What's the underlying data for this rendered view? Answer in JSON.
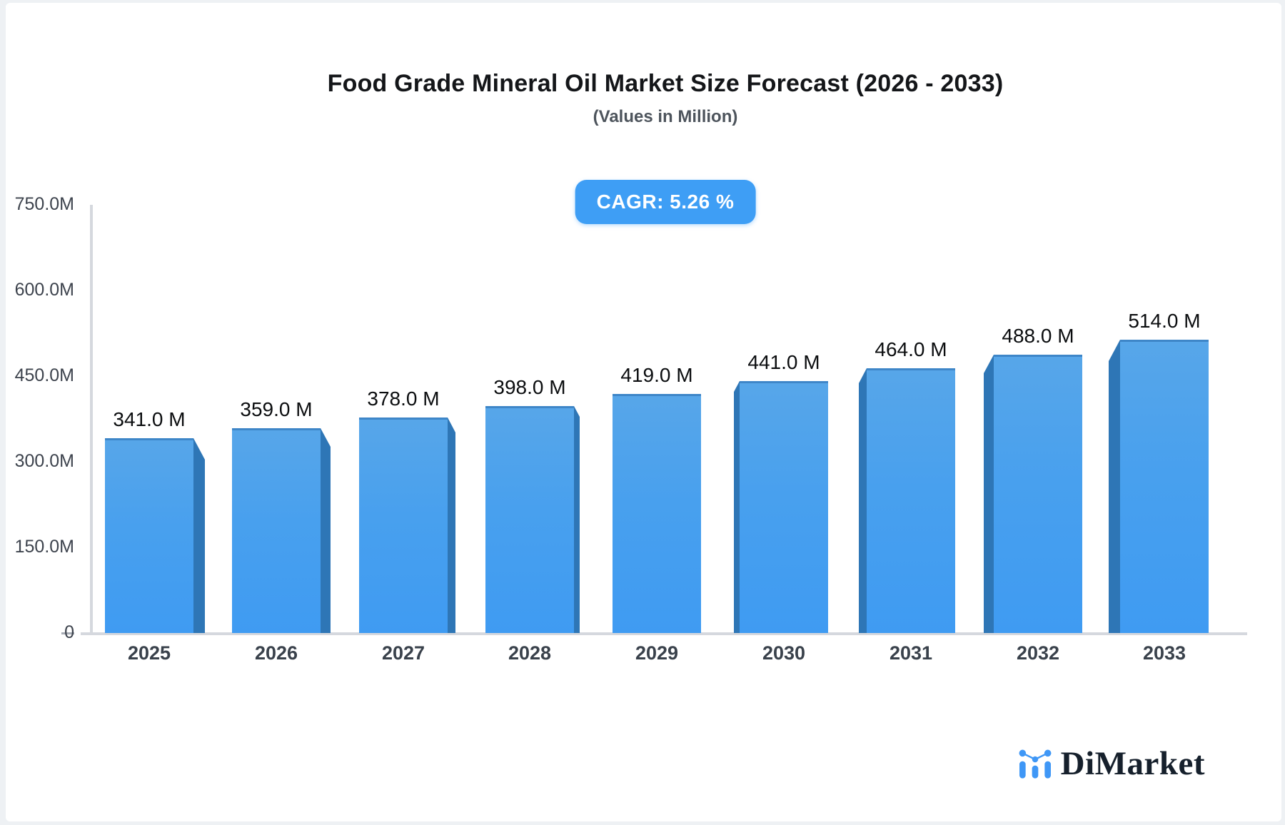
{
  "page": {
    "frame_color": "#eef1f4",
    "card_color": "#ffffff"
  },
  "header": {
    "title": "Food Grade Mineral Oil Market Size Forecast (2026 - 2033)",
    "subtitle": "(Values in Million)",
    "cagr_badge": "CAGR: 5.26 %"
  },
  "chart_data": {
    "type": "bar",
    "title": "Food Grade Mineral Oil Market Size Forecast (2026 - 2033)",
    "subtitle": "(Values in Million)",
    "cagr_percent": 5.26,
    "categories": [
      "2025",
      "2026",
      "2027",
      "2028",
      "2029",
      "2030",
      "2031",
      "2032",
      "2033"
    ],
    "values": [
      341,
      359,
      378,
      398,
      419,
      441,
      464,
      488,
      514
    ],
    "value_labels": [
      "341.0 M",
      "359.0 M",
      "378.0 M",
      "398.0 M",
      "419.0 M",
      "441.0 M",
      "464.0 M",
      "488.0 M",
      "514.0 M"
    ],
    "unit": "Million",
    "ylim": [
      0,
      750
    ],
    "yticks": [
      {
        "label": "750.0M",
        "value": 750
      },
      {
        "label": "600.0M",
        "value": 600
      },
      {
        "label": "450.0M",
        "value": 450
      },
      {
        "label": "300.0M",
        "value": 300
      },
      {
        "label": "150.0M",
        "value": 150
      },
      {
        "label": "0",
        "value": 0
      }
    ],
    "grid": false,
    "legend_position": "none",
    "bar_color": "#459ff0",
    "bar_side_color": "#2e76b6",
    "effect": "3d-center-perspective"
  },
  "branding": {
    "logo_text": "DiMarket",
    "logo_icon": "mini-bar-chart-icon",
    "logo_icon_color": "#3f97f6",
    "logo_text_color": "#16202c"
  }
}
